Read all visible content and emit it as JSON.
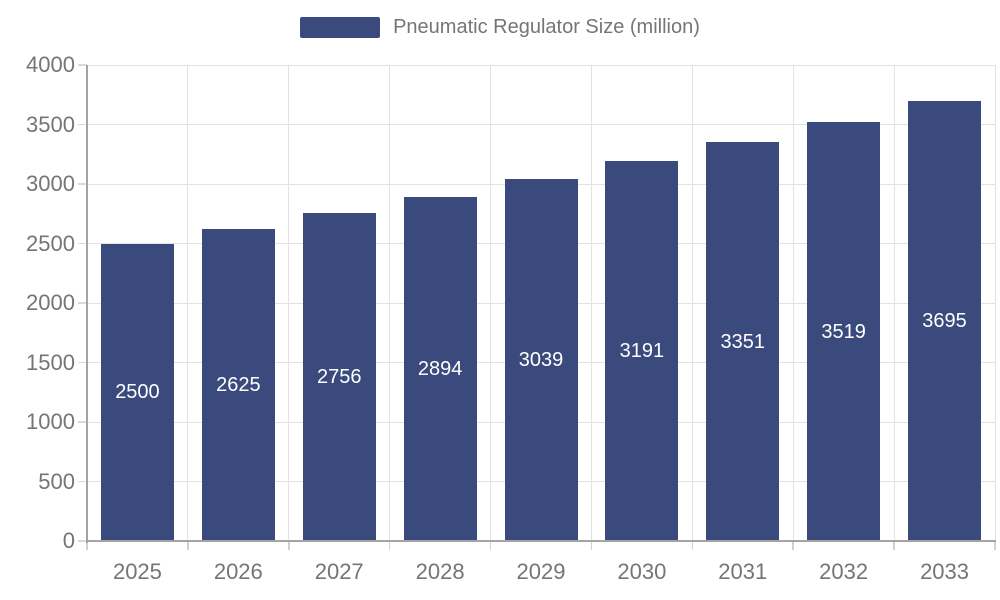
{
  "legend": {
    "label": "Pneumatic Regulator Size (million)"
  },
  "colors": {
    "bar": "#3A4A7D",
    "bar_label": "#FFFFFF",
    "axis_label": "#757575",
    "legend_text": "#757575",
    "gridline": "#E2E2E2",
    "axis_line": "#A3A3A3",
    "y_tick": "#D9D9D9",
    "x_tick": "#CDD0D6",
    "background": "#FFFFFF"
  },
  "chart_data": {
    "type": "bar",
    "title": "Pneumatic Regulator Size (million)",
    "categories": [
      "2025",
      "2026",
      "2027",
      "2028",
      "2029",
      "2030",
      "2031",
      "2032",
      "2033"
    ],
    "values": [
      2500,
      2625,
      2756,
      2894,
      3039,
      3191,
      3351,
      3519,
      3695
    ],
    "bar_labels": [
      "2500",
      "2625",
      "2756",
      "2894",
      "3039",
      "3191",
      "3351",
      "3519",
      "3695"
    ],
    "xlabel": "",
    "ylabel": "",
    "ylim": [
      0,
      4000
    ],
    "yticks": [
      0,
      500,
      1000,
      1500,
      2000,
      2500,
      3000,
      3500,
      4000
    ],
    "grid": true,
    "legend_position": "top-center",
    "bar_label_position": "inside-middle"
  }
}
